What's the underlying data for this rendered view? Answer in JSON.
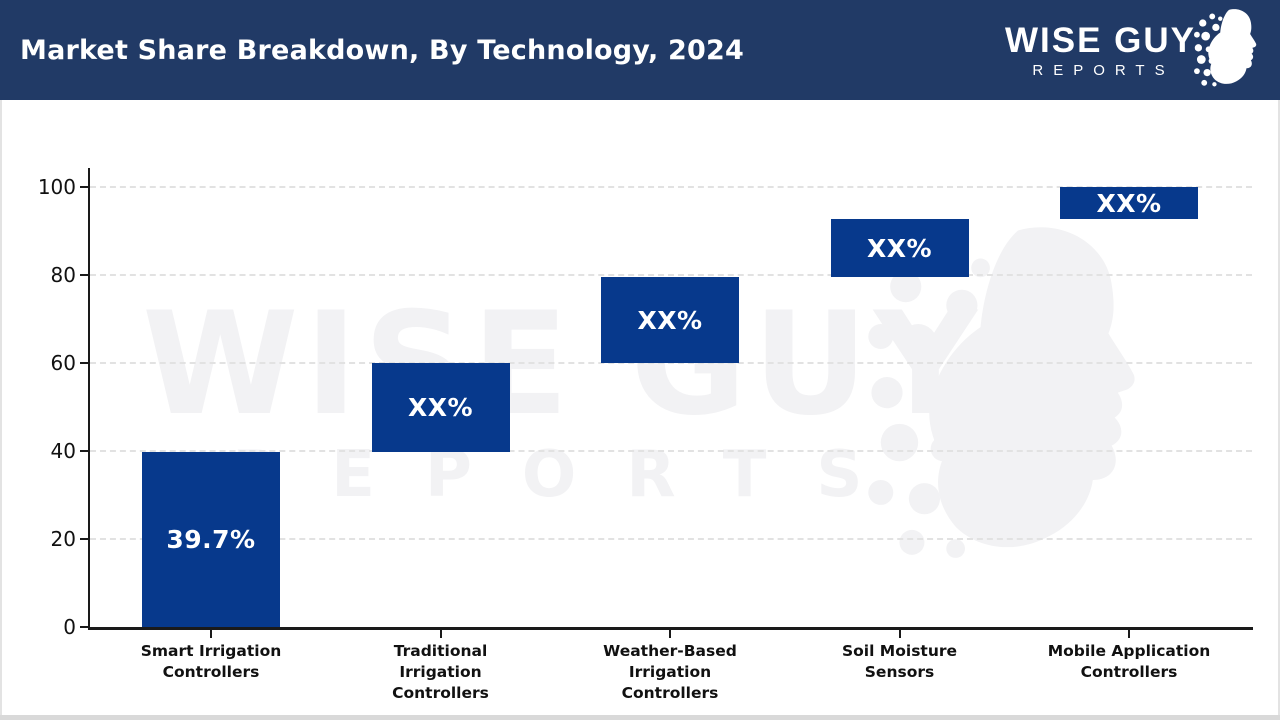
{
  "header": {
    "title": "Market Share Breakdown, By Technology, 2024",
    "bg_color": "#213a66",
    "logo": {
      "line1": "WISE GUY",
      "line2": "REPORTS",
      "icon": "head-profile-dots-icon"
    }
  },
  "watermark": {
    "line1": "WISE GUY",
    "line2": "REPORTS",
    "icon": "head-profile-dots-icon"
  },
  "chart_data": {
    "type": "bar",
    "subtype": "waterfall",
    "title": "Market Share Breakdown, By Technology, 2024",
    "categories": [
      "Smart Irrigation Controllers",
      "Traditional Irrigation Controllers",
      "Weather-Based Irrigation Controllers",
      "Soil Moisture Sensors",
      "Mobile Application Controllers"
    ],
    "category_lines": [
      [
        "Smart Irrigation",
        "Controllers"
      ],
      [
        "Traditional",
        "Irrigation",
        "Controllers"
      ],
      [
        "Weather-Based",
        "Irrigation",
        "Controllers"
      ],
      [
        "Soil Moisture",
        "Sensors"
      ],
      [
        "Mobile Application",
        "Controllers"
      ]
    ],
    "bars": [
      {
        "label": "39.7%",
        "start": 0,
        "end": 39.7,
        "value": 39.7
      },
      {
        "label": "XX%",
        "start": 39.7,
        "end": 60,
        "value": 20.3
      },
      {
        "label": "XX%",
        "start": 60,
        "end": 79.5,
        "value": 19.5
      },
      {
        "label": "XX%",
        "start": 79.5,
        "end": 92.7,
        "value": 13.2
      },
      {
        "label": "XX%",
        "start": 92.7,
        "end": 100,
        "value": 7.3
      }
    ],
    "ylim": [
      0,
      100
    ],
    "yticks": [
      0,
      20,
      40,
      60,
      80,
      100
    ],
    "xlabel": "",
    "ylabel": "",
    "grid": "horizontal-dashed",
    "legend": "none",
    "bar_color": "#07398c",
    "bar_label_color": "#ffffff",
    "axis_color": "#1a1a1a",
    "gridline_color": "#e2e2e2"
  }
}
